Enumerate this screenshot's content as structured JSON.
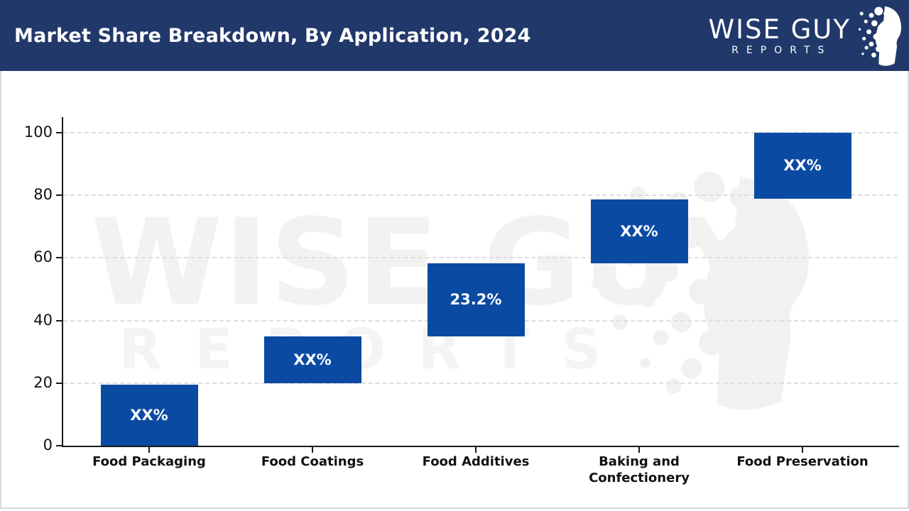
{
  "header": {
    "title": "Market Share Breakdown, By Application, 2024",
    "logo": {
      "line1": "WISE GUY",
      "line2": "REPORTS"
    }
  },
  "watermark": {
    "line1": "WISE GUY",
    "line2": "REPORTS"
  },
  "theme": {
    "header_bg": "#21386a",
    "bar_color": "#0b4aa2",
    "grid_color": "#dedede",
    "axis_color": "#1a1a1a",
    "watermark_color": "#f2f2f2"
  },
  "chart_data": {
    "type": "bar",
    "subtype": "waterfall",
    "title": "Market Share Breakdown, By Application, 2024",
    "xlabel": "",
    "ylabel": "",
    "categories": [
      "Food Packaging",
      "Food Coatings",
      "Food Additives",
      "Baking and\nConfectionery",
      "Food Preservation"
    ],
    "segments": [
      {
        "label": "Food Packaging",
        "start": 0,
        "end": 19.5,
        "display": "XX%"
      },
      {
        "label": "Food Coatings",
        "start": 20,
        "end": 35,
        "display": "XX%"
      },
      {
        "label": "Food Additives",
        "start": 35,
        "end": 58.2,
        "display": "23.2%",
        "value": 23.2
      },
      {
        "label": "Baking and Confectionery",
        "start": 58.2,
        "end": 78.7,
        "display": "XX%"
      },
      {
        "label": "Food Preservation",
        "start": 79,
        "end": 100,
        "display": "XX%"
      }
    ],
    "yticks": [
      0,
      20,
      40,
      60,
      80,
      100
    ],
    "ylim": [
      0,
      105
    ],
    "grid": "horizontal-dashed",
    "legend": "none",
    "bar_color": "#0b4aa2"
  }
}
